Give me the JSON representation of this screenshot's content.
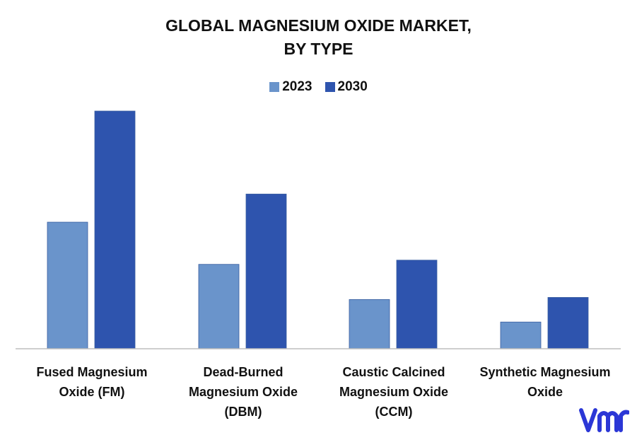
{
  "chart_data": {
    "type": "bar",
    "title_line1": "GLOBAL MAGNESIUM OXIDE MARKET,",
    "title_line2": "BY TYPE",
    "categories": [
      "Fused Magnesium Oxide (FM)",
      "Dead-Burned Magnesium Oxide (DBM)",
      "Caustic Calcined Magnesium Oxide (CCM)",
      "Synthetic Magnesium Oxide"
    ],
    "series": [
      {
        "name": "2023",
        "color": "#6a94cb",
        "values": [
          180,
          120,
          70,
          38
        ]
      },
      {
        "name": "2030",
        "color": "#2e54ae",
        "values": [
          338,
          220,
          126,
          73
        ]
      }
    ],
    "ylim": [
      0,
      340
    ],
    "grid": false,
    "legend_position": "top-center"
  },
  "logo": {
    "icon": "vmr-logo-icon",
    "color": "#2b37d6"
  }
}
